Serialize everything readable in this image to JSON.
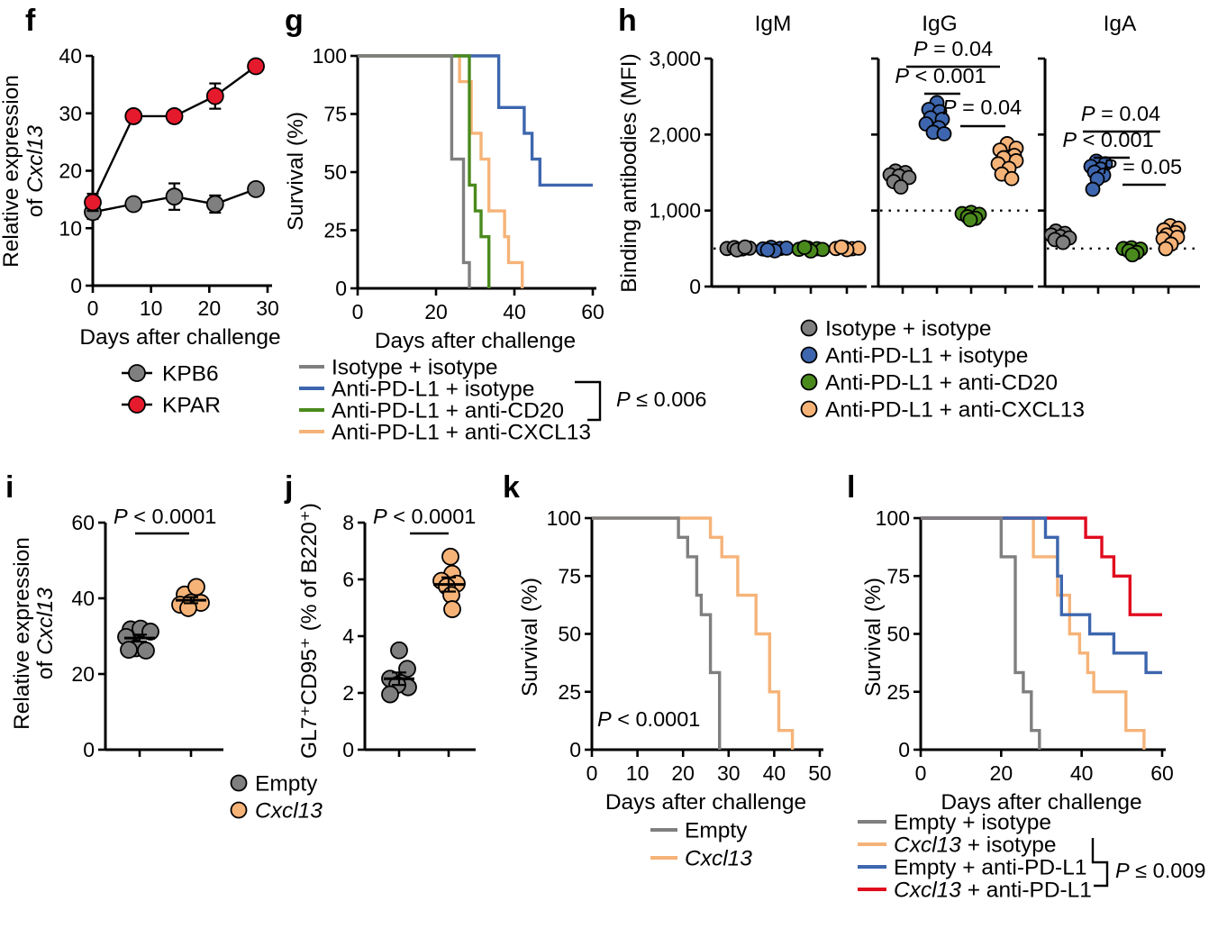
{
  "figure": {
    "background": "#ffffff"
  },
  "colors": {
    "gray": "#7f7f7f",
    "blue": "#3d66ae",
    "green": "#4a8a1d",
    "orange": "#f6b378",
    "red": "#e51a2c",
    "red_line": "#e00b1e",
    "axis": "#000000"
  },
  "panels": {
    "f": {
      "label": "f",
      "type": "line",
      "ylabel": [
        "Relative expression",
        "of *Cxcl13*"
      ],
      "xlabel": "Days after challenge",
      "yticks": [
        0,
        10,
        20,
        30,
        40
      ],
      "xticks": [
        0,
        10,
        20,
        30
      ],
      "ylim": [
        0,
        40
      ],
      "xlim": [
        0,
        30
      ],
      "x": [
        0,
        7,
        14,
        21,
        28
      ],
      "series": [
        {
          "name": "KPB6",
          "color_key": "gray",
          "values": [
            12.8,
            14.2,
            15.5,
            14.2,
            16.8
          ],
          "err": [
            1.2,
            0.9,
            2.3,
            1.5,
            0.8
          ]
        },
        {
          "name": "KPAR",
          "color_key": "red",
          "values": [
            14.5,
            29.5,
            29.5,
            33.0,
            38.2
          ],
          "err": [
            1.5,
            0.8,
            0.8,
            2.2,
            1.0
          ]
        }
      ]
    },
    "g": {
      "label": "g",
      "type": "survival",
      "ylabel": "Survival (%)",
      "xlabel": "Days after challenge",
      "yticks": [
        0,
        25,
        50,
        75,
        100
      ],
      "xticks": [
        0,
        20,
        40,
        60
      ],
      "ylim": [
        0,
        100
      ],
      "xlim": [
        0,
        60
      ],
      "p_value": "*P* ≤ 0.006",
      "series": [
        {
          "name": "Isotype + isotype",
          "color_key": "gray",
          "drops": [
            [
              24,
              55.6
            ],
            [
              27,
              11.1
            ],
            [
              28.5,
              0
            ]
          ]
        },
        {
          "name": "Anti-PD-L1 + isotype",
          "color_key": "blue",
          "drops": [
            [
              36,
              77.8
            ],
            [
              42.5,
              66.7
            ],
            [
              44.5,
              55.6
            ],
            [
              46.5,
              44.4
            ]
          ],
          "end": 60
        },
        {
          "name": "Anti-PD-L1 + anti-CD20",
          "color_key": "green",
          "drops": [
            [
              28.5,
              44.4
            ],
            [
              30,
              33.3
            ],
            [
              31.5,
              22.2
            ],
            [
              33.5,
              0
            ]
          ]
        },
        {
          "name": "Anti-PD-L1 + anti-CXCL13",
          "color_key": "orange",
          "drops": [
            [
              26,
              88.9
            ],
            [
              29,
              66.7
            ],
            [
              31.5,
              55.6
            ],
            [
              33.5,
              33.3
            ],
            [
              37.5,
              22.2
            ],
            [
              38.5,
              11.1
            ],
            [
              42,
              0
            ]
          ]
        }
      ]
    },
    "h": {
      "label": "h",
      "type": "dotpanels",
      "ylabel": "Binding antibodies (MFI)",
      "yticks": [
        0,
        1000,
        2000,
        3000
      ],
      "ytick_labels": [
        "0",
        "1,000",
        "2,000",
        "3,000"
      ],
      "ylim": [
        0,
        3000
      ],
      "group_keys": [
        "gray",
        "blue",
        "green",
        "orange"
      ],
      "legend": [
        "Isotype + isotype",
        "Anti-PD-L1 + isotype",
        "Anti-PD-L1 + anti-CD20",
        "Anti-PD-L1 + anti-CXCL13"
      ],
      "subpanels": [
        {
          "title": "IgM",
          "dashed_y": 500,
          "groups": [
            [
              [
                -13,
                500
              ],
              [
                -5,
                512
              ],
              [
                4,
                495
              ],
              [
                12,
                505
              ],
              [
                -2,
                482
              ],
              [
                7,
                520
              ]
            ],
            [
              [
                -13,
                495
              ],
              [
                -4,
                515
              ],
              [
                6,
                500
              ],
              [
                13,
                505
              ],
              [
                0,
                470
              ],
              [
                -8,
                482
              ]
            ],
            [
              [
                -13,
                490
              ],
              [
                -3,
                505
              ],
              [
                7,
                498
              ],
              [
                13,
                488
              ],
              [
                0,
                468
              ],
              [
                -7,
                515
              ]
            ],
            [
              [
                -12,
                500
              ],
              [
                -3,
                512
              ],
              [
                6,
                498
              ],
              [
                13,
                505
              ],
              [
                0,
                485
              ],
              [
                -6,
                520
              ]
            ]
          ],
          "annotations": []
        },
        {
          "title": "IgG",
          "dashed_y": 1000,
          "groups": [
            [
              [
                -8,
                1520
              ],
              [
                3,
                1500
              ],
              [
                -14,
                1470
              ],
              [
                -4,
                1455
              ],
              [
                7,
                1435
              ],
              [
                -10,
                1380
              ],
              [
                -2,
                1310
              ]
            ],
            [
              [
                0,
                2420
              ],
              [
                -9,
                2330
              ],
              [
                3,
                2300
              ],
              [
                -7,
                2220
              ],
              [
                6,
                2200
              ],
              [
                -12,
                2140
              ],
              [
                2,
                2090
              ],
              [
                -4,
                2030
              ],
              [
                8,
                2010
              ]
            ],
            [
              [
                -10,
                960
              ],
              [
                0,
                975
              ],
              [
                9,
                950
              ],
              [
                -4,
                918
              ],
              [
                5,
                898
              ],
              [
                -1,
                878
              ]
            ],
            [
              [
                2,
                1880
              ],
              [
                12,
                1820
              ],
              [
                -6,
                1795
              ],
              [
                10,
                1725
              ],
              [
                -2,
                1695
              ],
              [
                12,
                1655
              ],
              [
                -8,
                1615
              ],
              [
                4,
                1555
              ],
              [
                -4,
                1480
              ],
              [
                7,
                1420
              ]
            ]
          ],
          "annotations": [
            {
              "text": "*P* = 0.04"
            },
            {
              "text": "*P* < 0.001"
            },
            {
              "text": "*P* = 0.04"
            }
          ]
        },
        {
          "title": "IgA",
          "dashed_y": 500,
          "groups": [
            [
              [
                -8,
                730
              ],
              [
                2,
                700
              ],
              [
                -13,
                678
              ],
              [
                -3,
                658
              ],
              [
                7,
                640
              ],
              [
                -9,
                618
              ],
              [
                0,
                580
              ]
            ],
            [
              [
                -2,
                1650
              ],
              [
                8,
                1615
              ],
              [
                -8,
                1580
              ],
              [
                3,
                1545
              ],
              [
                -4,
                1505
              ],
              [
                6,
                1465
              ],
              [
                -1,
                1415
              ],
              [
                -6,
                1280
              ]
            ],
            [
              [
                -11,
                500
              ],
              [
                -2,
                510
              ],
              [
                8,
                492
              ],
              [
                -5,
                468
              ],
              [
                4,
                448
              ],
              [
                -1,
                418
              ]
            ],
            [
              [
                2,
                800
              ],
              [
                11,
                768
              ],
              [
                -5,
                745
              ],
              [
                8,
                710
              ],
              [
                -2,
                678
              ],
              [
                10,
                648
              ],
              [
                -6,
                628
              ],
              [
                3,
                558
              ],
              [
                -3,
                498
              ]
            ]
          ],
          "annotations": [
            {
              "text": "*P* = 0.04"
            },
            {
              "text": "*P* < 0.001"
            },
            {
              "text": "*P* = 0.05"
            }
          ]
        }
      ]
    },
    "i": {
      "label": "i",
      "type": "dotplot",
      "ylabel": [
        "Relative expression",
        "of *Cxcl13*"
      ],
      "yticks": [
        0,
        20,
        40,
        60
      ],
      "ylim": [
        0,
        60
      ],
      "p_value": "*P* < 0.0001",
      "groups": [
        {
          "name": "Empty",
          "color_key": "gray",
          "mean": 29.5,
          "sem": 0.9,
          "points": [
            [
              -10,
              31.8
            ],
            [
              1,
              32
            ],
            [
              12,
              31.2
            ],
            [
              -15,
              29.8
            ],
            [
              -4,
              26.8
            ],
            [
              7,
              26.2
            ],
            [
              -12,
              26.4
            ]
          ]
        },
        {
          "name": "*Cxcl13*",
          "color_key": "orange",
          "mean": 39.5,
          "sem": 0.8,
          "points": [
            [
              -7,
              41
            ],
            [
              6,
              43
            ],
            [
              -12,
              38.3
            ],
            [
              0,
              38.9
            ],
            [
              11,
              38.8
            ],
            [
              -3,
              37.4
            ]
          ]
        }
      ],
      "legend": [
        "Empty",
        "*Cxcl13*"
      ]
    },
    "j": {
      "label": "j",
      "type": "dotplot",
      "ylabel": [
        "GL7⁺CD95⁺ (% of B220⁺)"
      ],
      "yticks": [
        0,
        2,
        4,
        6,
        8
      ],
      "ylim": [
        0,
        8
      ],
      "p_value": "*P* < 0.0001",
      "groups": [
        {
          "name": "Empty",
          "color_key": "gray",
          "mean": 2.5,
          "sem": 0.22,
          "points": [
            [
              0,
              3.5
            ],
            [
              9,
              2.85
            ],
            [
              -10,
              2.5
            ],
            [
              2,
              2.35
            ],
            [
              10,
              2.2
            ],
            [
              -2,
              2.28
            ],
            [
              -10,
              1.95
            ]
          ]
        },
        {
          "name": "*Cxcl13*",
          "color_key": "orange",
          "mean": 5.82,
          "sem": 0.25,
          "points": [
            [
              2,
              6.8
            ],
            [
              4,
              6.2
            ],
            [
              -8,
              5.95
            ],
            [
              9,
              5.85
            ],
            [
              -2,
              5.75
            ],
            [
              3,
              5.45
            ],
            [
              4,
              4.95
            ]
          ]
        }
      ]
    },
    "k": {
      "label": "k",
      "type": "survival",
      "ylabel": "Survival (%)",
      "xlabel": "Days after challenge",
      "yticks": [
        0,
        25,
        50,
        75,
        100
      ],
      "xticks": [
        0,
        10,
        20,
        30,
        40,
        50
      ],
      "ylim": [
        0,
        100
      ],
      "xlim": [
        0,
        50
      ],
      "p_value": "*P* < 0.0001",
      "series": [
        {
          "name": "Empty",
          "color_key": "gray",
          "drops": [
            [
              19,
              91.7
            ],
            [
              21,
              83.3
            ],
            [
              23,
              66.7
            ],
            [
              24,
              58.3
            ],
            [
              26,
              33.3
            ],
            [
              28,
              0
            ]
          ]
        },
        {
          "name": "*Cxcl13*",
          "color_key": "orange",
          "drops": [
            [
              26,
              91.7
            ],
            [
              28.5,
              83.3
            ],
            [
              32,
              66.7
            ],
            [
              36,
              50
            ],
            [
              39,
              25
            ],
            [
              41,
              8.3
            ],
            [
              44,
              0
            ]
          ]
        }
      ]
    },
    "l": {
      "label": "l",
      "type": "survival",
      "ylabel": "Survival (%)",
      "xlabel": "Days after challenge",
      "yticks": [
        0,
        25,
        50,
        75,
        100
      ],
      "xticks": [
        0,
        20,
        40,
        60
      ],
      "ylim": [
        0,
        100
      ],
      "xlim": [
        0,
        60
      ],
      "p_value": "*P* ≤ 0.009",
      "series": [
        {
          "name": "Empty + isotype",
          "color_key": "gray",
          "drops": [
            [
              20,
              83.3
            ],
            [
              23.5,
              33.3
            ],
            [
              25.5,
              25
            ],
            [
              27.5,
              8.3
            ],
            [
              29.5,
              0
            ]
          ]
        },
        {
          "name": "*Cxcl13* + isotype",
          "color_key": "orange",
          "drops": [
            [
              28,
              83.3
            ],
            [
              34,
              66.7
            ],
            [
              37,
              50
            ],
            [
              39.5,
              41.7
            ],
            [
              41.5,
              33.3
            ],
            [
              43,
              25
            ],
            [
              51,
              8.3
            ],
            [
              55.5,
              0
            ]
          ]
        },
        {
          "name": "Empty + anti-PD-L1",
          "color_key": "blue",
          "drops": [
            [
              31,
              91.7
            ],
            [
              34,
              75
            ],
            [
              35,
              58.3
            ],
            [
              42,
              50
            ],
            [
              48,
              41.7
            ],
            [
              56,
              33.3
            ]
          ],
          "end": 60
        },
        {
          "name": "*Cxcl13* + anti-PD-L1",
          "color_key": "red_line",
          "drops": [
            [
              41,
              91.7
            ],
            [
              45,
              83.3
            ],
            [
              48,
              75
            ],
            [
              52,
              58.3
            ]
          ],
          "end": 60
        }
      ]
    }
  }
}
